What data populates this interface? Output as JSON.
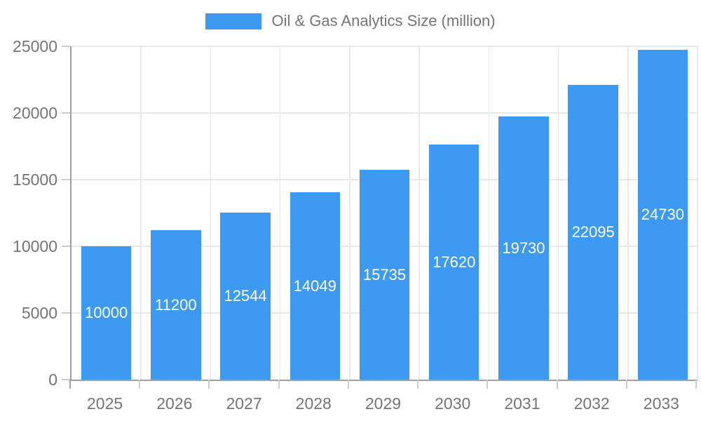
{
  "chart_data": {
    "type": "bar",
    "title": "Oil & Gas Analytics Size (million)",
    "categories": [
      "2025",
      "2026",
      "2027",
      "2028",
      "2029",
      "2030",
      "2031",
      "2032",
      "2033"
    ],
    "values": [
      10000,
      11200,
      12544,
      14049,
      15735,
      17620,
      19730,
      22095,
      24730
    ],
    "y_ticks": [
      0,
      5000,
      10000,
      15000,
      20000,
      25000
    ],
    "ylim": [
      0,
      25000
    ],
    "xlabel": "",
    "ylabel": "",
    "legend_position": "top-center",
    "grid": true,
    "colors": {
      "bar": "#3d9af0",
      "value_label": "#ffffff",
      "axis_text": "#757575",
      "axis_line": "#a0a0a0",
      "grid_line": "#e8e8e8",
      "tick_mark": "#cccccc",
      "background": "#ffffff"
    }
  }
}
